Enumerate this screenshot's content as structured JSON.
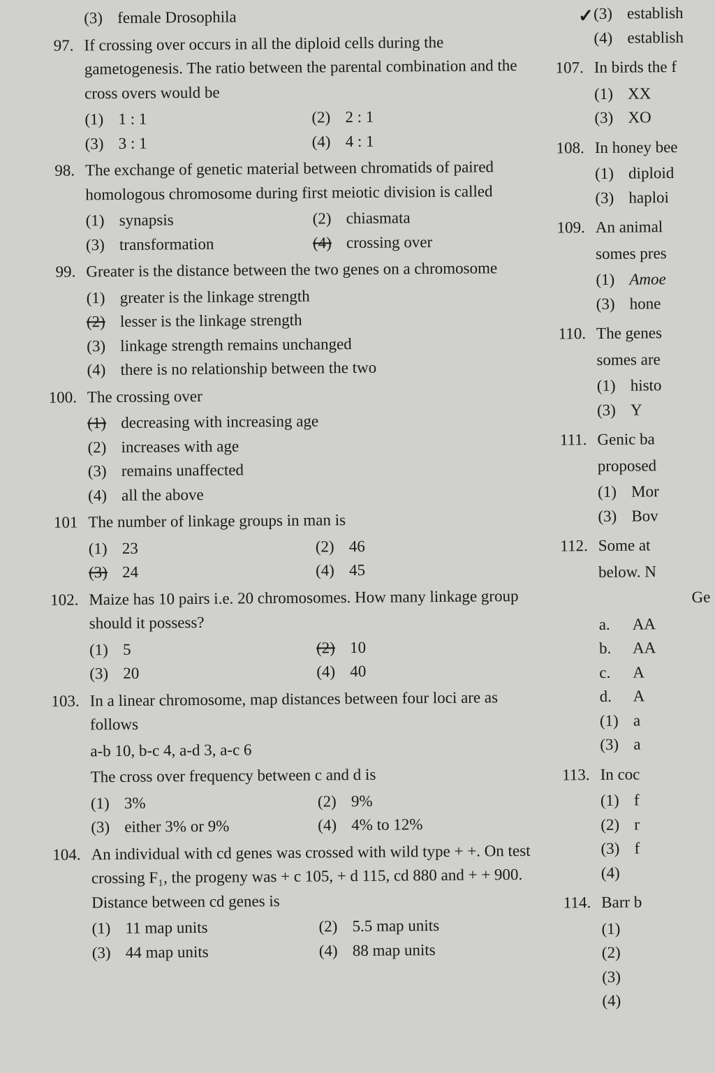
{
  "left": {
    "q_top_option": "female Drosophila",
    "q_top_num": "(3)",
    "q97": {
      "num": "97.",
      "text": "If crossing over occurs in all the diploid cells during the gametogenesis. The ratio between the parental combination and the cross overs would be",
      "opts": [
        {
          "n": "(1)",
          "t": "1 : 1"
        },
        {
          "n": "(2)",
          "t": "2 : 1"
        },
        {
          "n": "(3)",
          "t": "3 : 1"
        },
        {
          "n": "(4)",
          "t": "4 : 1"
        }
      ]
    },
    "q98": {
      "num": "98.",
      "text": "The exchange of genetic material between chromatids of paired homologous chromosome during first meiotic division is called",
      "opts": [
        {
          "n": "(1)",
          "t": "synapsis"
        },
        {
          "n": "(2)",
          "t": "chiasmata"
        },
        {
          "n": "(3)",
          "t": "transformation"
        },
        {
          "n": "(4)",
          "t": "crossing over"
        }
      ]
    },
    "q99": {
      "num": "99.",
      "text": "Greater is the distance between the two genes on a chromosome",
      "opts": [
        {
          "n": "(1)",
          "t": "greater is the linkage strength"
        },
        {
          "n": "(2)",
          "t": "lesser is the linkage strength"
        },
        {
          "n": "(3)",
          "t": "linkage strength remains unchanged"
        },
        {
          "n": "(4)",
          "t": "there is no relationship between the two"
        }
      ]
    },
    "q100": {
      "num": "100.",
      "text": "The crossing over",
      "opts": [
        {
          "n": "(1)",
          "t": "decreasing with increasing age"
        },
        {
          "n": "(2)",
          "t": "increases with age"
        },
        {
          "n": "(3)",
          "t": "remains unaffected"
        },
        {
          "n": "(4)",
          "t": "all the above"
        }
      ]
    },
    "q101": {
      "num": "101",
      "text": "The number of linkage groups in man is",
      "opts": [
        {
          "n": "(1)",
          "t": "23"
        },
        {
          "n": "(2)",
          "t": "46"
        },
        {
          "n": "(3)",
          "t": "24"
        },
        {
          "n": "(4)",
          "t": "45"
        }
      ]
    },
    "q102": {
      "num": "102.",
      "text": "Maize has 10 pairs i.e. 20 chromosomes. How many linkage group should it possess?",
      "opts": [
        {
          "n": "(1)",
          "t": "5"
        },
        {
          "n": "(2)",
          "t": "10"
        },
        {
          "n": "(3)",
          "t": "20"
        },
        {
          "n": "(4)",
          "t": "40"
        }
      ]
    },
    "q103": {
      "num": "103.",
      "text": "In a linear chromosome, map distances between four loci are as follows",
      "text2": "a-b 10, b-c 4, a-d 3, a-c 6",
      "text3": "The cross over frequency between c and d is",
      "opts": [
        {
          "n": "(1)",
          "t": "3%"
        },
        {
          "n": "(2)",
          "t": "9%"
        },
        {
          "n": "(3)",
          "t": "either 3% or 9%"
        },
        {
          "n": "(4)",
          "t": "4% to 12%"
        }
      ]
    },
    "q104": {
      "num": "104.",
      "text": "An individual with cd genes was crossed with wild type + +. On test crossing F₁, the progeny was + c 105, + d 115, cd 880 and + + 900. Distance between cd genes is",
      "opts": [
        {
          "n": "(1)",
          "t": "11 map units"
        },
        {
          "n": "(2)",
          "t": "5.5 map units"
        },
        {
          "n": "(3)",
          "t": "44 map units"
        },
        {
          "n": "(4)",
          "t": "88 map units"
        }
      ]
    }
  },
  "right": {
    "partial_top": [
      {
        "n": "(3)",
        "t": "establish"
      },
      {
        "n": "(4)",
        "t": "establish"
      }
    ],
    "q107": {
      "num": "107.",
      "text": "In birds the f",
      "opts": [
        {
          "n": "(1)",
          "t": "XX"
        },
        {
          "n": "(3)",
          "t": "XO"
        }
      ]
    },
    "q108": {
      "num": "108.",
      "text": "In honey bee",
      "opts": [
        {
          "n": "(1)",
          "t": "diploid"
        },
        {
          "n": "(3)",
          "t": "haploi"
        }
      ]
    },
    "q109": {
      "num": "109.",
      "text": "An animal",
      "text2": "somes pres",
      "opts": [
        {
          "n": "(1)",
          "t": "Amoe"
        },
        {
          "n": "(3)",
          "t": "hone"
        }
      ]
    },
    "q110": {
      "num": "110.",
      "text": "The genes",
      "text2": "somes are",
      "opts": [
        {
          "n": "(1)",
          "t": "histo"
        },
        {
          "n": "(3)",
          "t": "Y"
        }
      ]
    },
    "q111": {
      "num": "111.",
      "text": "Genic ba",
      "text2": "proposed",
      "opts": [
        {
          "n": "(1)",
          "t": "Mor"
        },
        {
          "n": "(3)",
          "t": "Bov"
        }
      ]
    },
    "q112": {
      "num": "112.",
      "text": "Some at",
      "text2": "below. N",
      "ge": "Ge",
      "letters": [
        {
          "n": "a.",
          "t": "AA"
        },
        {
          "n": "b.",
          "t": "AA"
        },
        {
          "n": "c.",
          "t": "A"
        },
        {
          "n": "d.",
          "t": "A"
        }
      ],
      "opts": [
        {
          "n": "(1)",
          "t": "a"
        },
        {
          "n": "(3)",
          "t": "a"
        }
      ]
    },
    "q113": {
      "num": "113.",
      "text": "In coc",
      "opts": [
        {
          "n": "(1)",
          "t": "f"
        },
        {
          "n": "(2)",
          "t": "r"
        },
        {
          "n": "(3)",
          "t": "f"
        },
        {
          "n": "(4)",
          "t": ""
        }
      ]
    },
    "q114": {
      "num": "114.",
      "text": "Barr b",
      "opts": [
        {
          "n": "(1)",
          "t": ""
        },
        {
          "n": "(2)",
          "t": ""
        },
        {
          "n": "(3)",
          "t": ""
        },
        {
          "n": "(4)",
          "t": ""
        }
      ]
    }
  }
}
